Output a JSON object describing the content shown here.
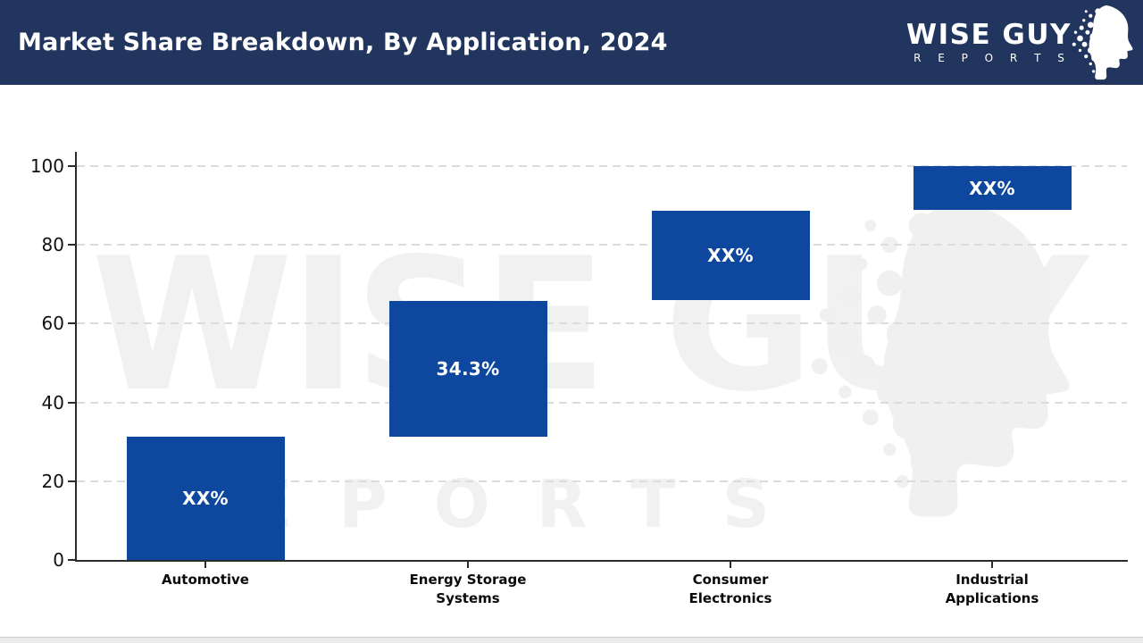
{
  "header": {
    "title": "Market Share Breakdown, By Application, 2024",
    "logo": {
      "wordmark": "WISE GUY",
      "subtitle": "R E P O R T S"
    }
  },
  "watermark": {
    "wordmark": "WISE GUY",
    "subtitle": "REPORTS"
  },
  "colors": {
    "header_bg": "#21355e",
    "bar": "#0e479e",
    "grid": "#dcdcdc",
    "axis": "#2b2b2b",
    "watermark": "#f1f1f1",
    "bar_label": "#ffffff"
  },
  "chart_data": {
    "type": "bar",
    "subtype": "waterfall",
    "title": "Market Share Breakdown, By Application, 2024",
    "categories": [
      "Automotive",
      "Energy Storage\nSystems",
      "Consumer\nElectronics",
      "Industrial\nApplications"
    ],
    "segments": [
      {
        "category": "Automotive",
        "start": 0,
        "end": 31.4,
        "label": "XX%"
      },
      {
        "category": "Energy Storage Systems",
        "start": 31.4,
        "end": 65.7,
        "label": "34.3%"
      },
      {
        "category": "Consumer Electronics",
        "start": 66.0,
        "end": 88.6,
        "label": "XX%"
      },
      {
        "category": "Industrial Applications",
        "start": 88.8,
        "end": 100,
        "label": "XX%"
      }
    ],
    "xlabel": "",
    "ylabel": "",
    "ylim": [
      0,
      100
    ],
    "yticks": [
      0,
      20,
      40,
      60,
      80,
      100
    ],
    "grid": "horizontal-dashed",
    "legend": "none",
    "bar_color": "#0e479e",
    "label_color": "#ffffff"
  }
}
